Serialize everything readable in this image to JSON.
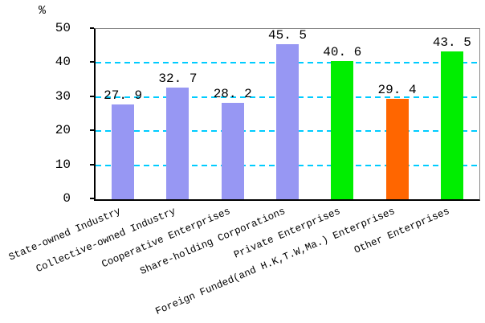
{
  "unit_label": "%",
  "chart_data": {
    "type": "bar",
    "title": "",
    "xlabel": "",
    "ylabel": "%",
    "categories": [
      "State-owned Industry",
      "Collective-owned Industry",
      "Cooperative Enterprises",
      "Share-holding Corporations",
      "Private Enterprises",
      "Foreign Funded(and H.K,T.W,Ma.) Enterprises",
      "Other Enterprises"
    ],
    "values": [
      27.9,
      32.7,
      28.2,
      45.5,
      40.6,
      29.4,
      43.5
    ],
    "value_labels": [
      "27. 9",
      "32. 7",
      "28. 2",
      "45. 5",
      "40. 6",
      "29. 4",
      "43. 5"
    ],
    "bar_colors": [
      "#9797f3",
      "#9797f3",
      "#9797f3",
      "#9797f3",
      "#00ee00",
      "#ff6600",
      "#00ee00"
    ],
    "ylim": [
      0,
      50
    ],
    "yticks": [
      0,
      10,
      20,
      30,
      40,
      50
    ],
    "gridlines_at": [
      10,
      20,
      30,
      40
    ],
    "grid": true,
    "legend_position": "none"
  },
  "colors": {
    "purple_bar": "#9797f3",
    "green_bar": "#00ee00",
    "orange_bar": "#ff6600",
    "gridline": "#00ccff",
    "plot_border_gray": "#878787",
    "axis_black": "#000000",
    "background": "#ffffff"
  }
}
